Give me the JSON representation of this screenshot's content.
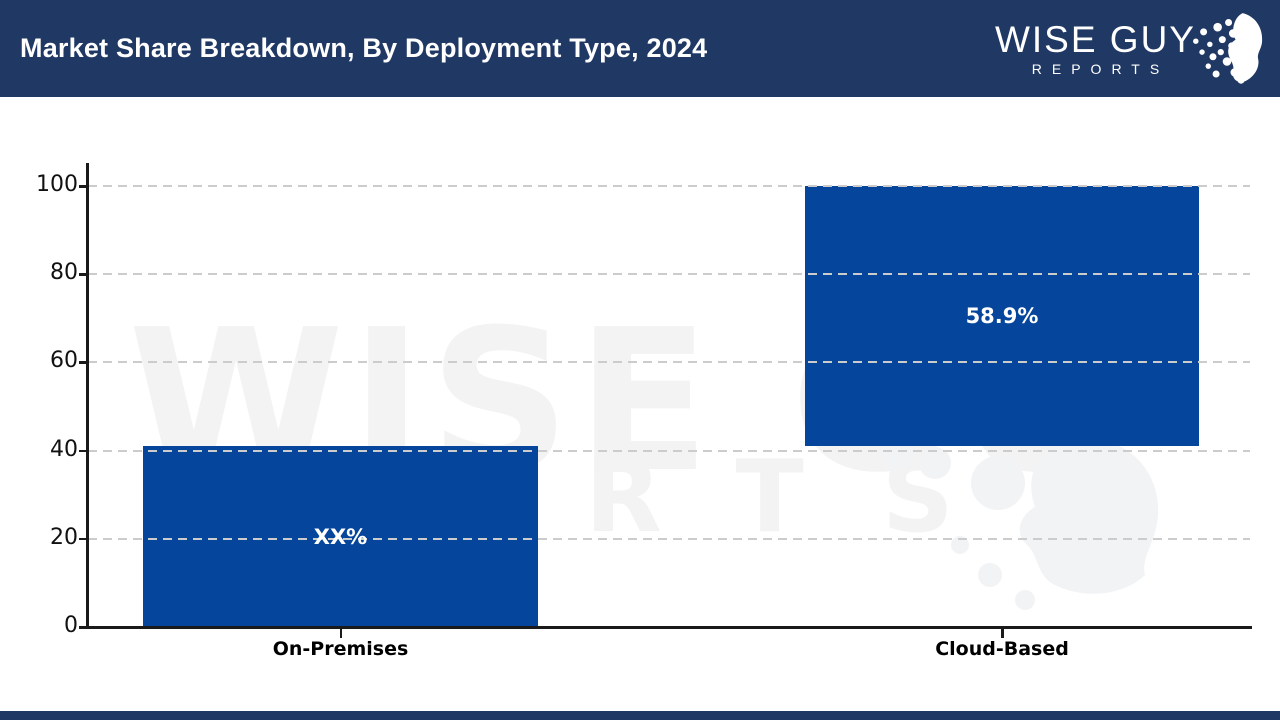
{
  "header": {
    "title": "Market Share Breakdown, By Deployment Type, 2024",
    "brand": {
      "name": "WISE GUY",
      "sub": "REPORTS"
    }
  },
  "watermark": {
    "line1": "WISE GU",
    "line2": "RTS"
  },
  "chart_data": {
    "type": "bar",
    "subtype": "waterfall-percentage",
    "title": "Market Share Breakdown, By Deployment Type, 2024",
    "categories": [
      "On-Premises",
      "Cloud-Based"
    ],
    "series": [
      {
        "name": "On-Premises",
        "base": 0,
        "top": 41,
        "label": "XX%"
      },
      {
        "name": "Cloud-Based",
        "base": 41,
        "top": 100,
        "label": "58.9%"
      }
    ],
    "xlabel": "",
    "ylabel": "",
    "yticks": [
      0,
      20,
      40,
      60,
      80,
      100
    ],
    "ylim": [
      0,
      105
    ],
    "grid": {
      "axis": "y",
      "style": "dashed",
      "over_bars": true
    },
    "legend": null
  },
  "colors": {
    "header_bg": "#1F3864",
    "bar": "#05459C",
    "grid": "#CCCCCC",
    "axis": "#1A1A1A",
    "title_text": "#FFFFFF",
    "watermark": "#F3F3F4"
  }
}
